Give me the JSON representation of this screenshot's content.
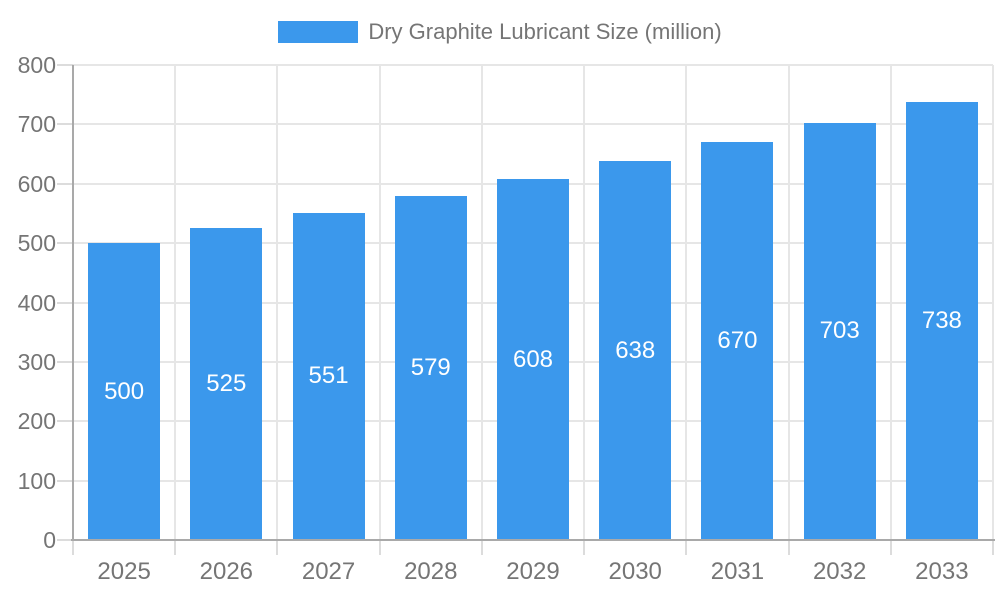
{
  "chart_data": {
    "type": "bar",
    "title": "",
    "series_name": "Dry Graphite Lubricant Size (million)",
    "categories": [
      "2025",
      "2026",
      "2027",
      "2028",
      "2029",
      "2030",
      "2031",
      "2032",
      "2033"
    ],
    "values": [
      500,
      525,
      551,
      579,
      608,
      638,
      670,
      703,
      738
    ],
    "xlabel": "",
    "ylabel": "",
    "ylim": [
      0,
      800
    ],
    "yticks": [
      0,
      100,
      200,
      300,
      400,
      500,
      600,
      700,
      800
    ],
    "grid": "horizontal gridlines + vertical category-boundary gridlines",
    "legend_position": "top-center",
    "value_label_position": "inside-middle"
  },
  "colors": {
    "bar": "#3B98EC",
    "axis_text": "#757575",
    "value_label_text": "#FFFFFF",
    "gridline": "#E6E6E6",
    "axis_line": "#A9A9A9",
    "tick": "#DCDCDC",
    "background": "#FFFFFF"
  }
}
